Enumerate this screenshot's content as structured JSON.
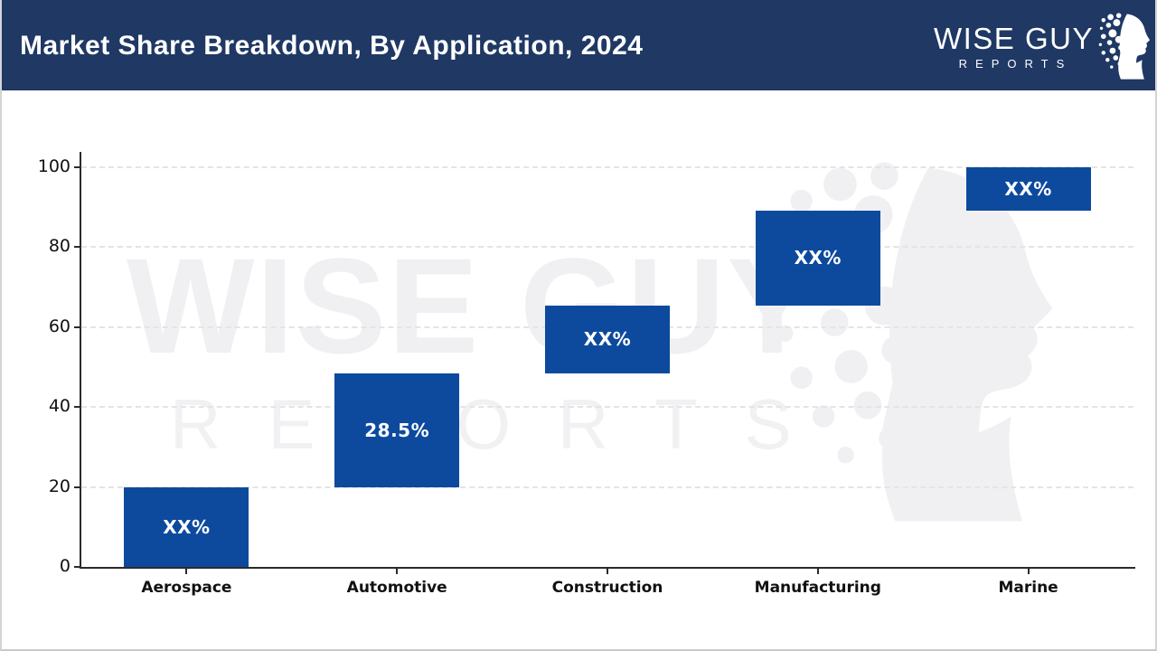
{
  "header": {
    "title": "Market Share Breakdown, By Application, 2024",
    "logo_line1": "WISE GUY",
    "logo_line2": "REPORTS"
  },
  "watermark": {
    "line1": "WISE GUY",
    "line2": "REPORTS"
  },
  "colors": {
    "header_bg": "#1f3864",
    "bar": "#0d4a9e",
    "axis": "#2b2b2b",
    "gridline": "#e4e4e6",
    "watermark": "#f0f0f2"
  },
  "chart_data": {
    "type": "waterfall",
    "title": "Market Share Breakdown, By Application, 2024",
    "categories": [
      "Aerospace",
      "Automotive",
      "Construction",
      "Manufacturing",
      "Marine"
    ],
    "segments": [
      {
        "category": "Aerospace",
        "start": 0,
        "end": 20,
        "label": "XX%"
      },
      {
        "category": "Automotive",
        "start": 20,
        "end": 48.5,
        "label": "28.5%"
      },
      {
        "category": "Construction",
        "start": 48.5,
        "end": 65.4,
        "label": "XX%"
      },
      {
        "category": "Manufacturing",
        "start": 65.4,
        "end": 89.2,
        "label": "XX%"
      },
      {
        "category": "Marine",
        "start": 89.2,
        "end": 100,
        "label": "XX%"
      }
    ],
    "values": [
      20,
      28.5,
      16.9,
      23.8,
      10.8
    ],
    "bar_labels": [
      "XX%",
      "28.5%",
      "XX%",
      "XX%",
      "XX%"
    ],
    "y_ticks": [
      0,
      20,
      40,
      60,
      80,
      100
    ],
    "ylim": [
      0,
      100
    ],
    "xlabel": "",
    "ylabel": "",
    "grid": "horizontal-dashed",
    "legend": "none"
  }
}
